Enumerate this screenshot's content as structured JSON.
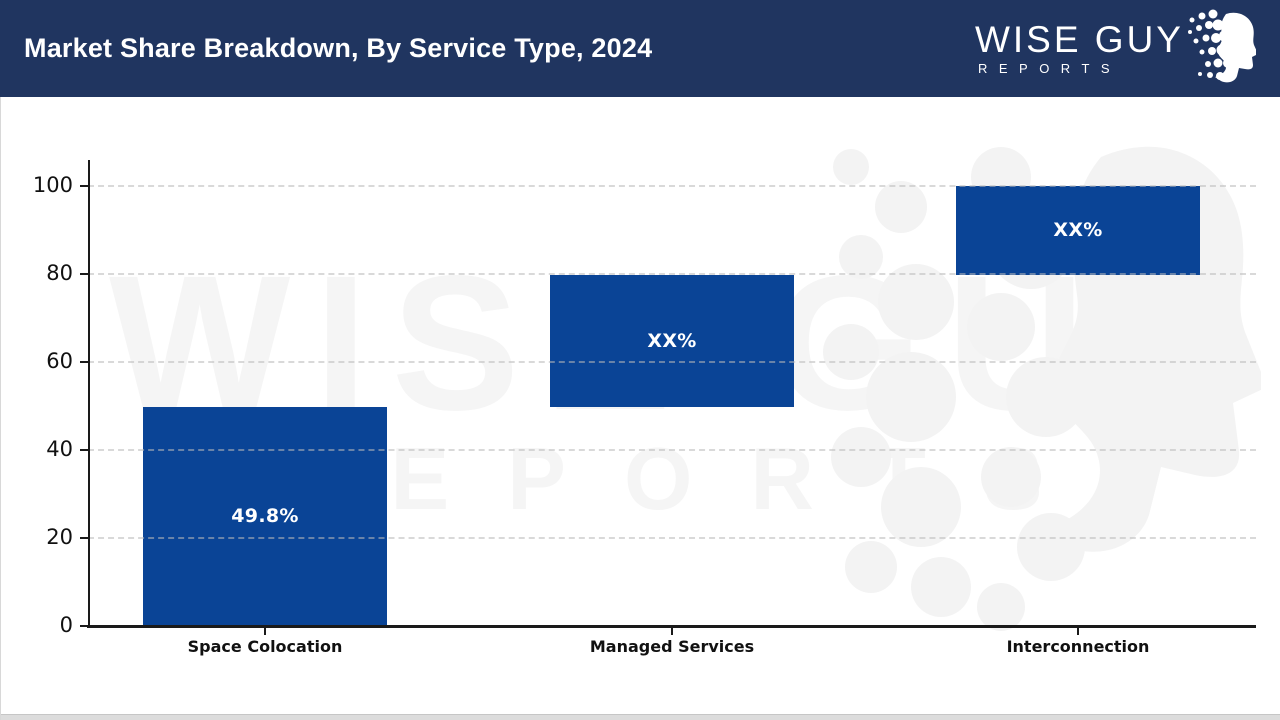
{
  "header": {
    "title": "Market Share Breakdown, By Service Type, 2024",
    "logo": {
      "line1": "WISE GUY",
      "line2": "REPORTS"
    }
  },
  "watermark": {
    "line1": "WISE GUY",
    "line2": "REPORTS"
  },
  "chart_data": {
    "type": "bar",
    "subtype": "waterfall",
    "title": "Market Share Breakdown, By Service Type, 2024",
    "categories": [
      "Space Colocation",
      "Managed Services",
      "Interconnection"
    ],
    "bars": [
      {
        "category": "Space Colocation",
        "start": 0,
        "end": 49.8,
        "value": 49.8,
        "label": "49.8%"
      },
      {
        "category": "Managed Services",
        "start": 49.8,
        "end": 79.8,
        "value": 30.0,
        "label": "XX%"
      },
      {
        "category": "Interconnection",
        "start": 79.8,
        "end": 100,
        "value": 20.2,
        "label": "XX%"
      }
    ],
    "yticks": [
      0,
      20,
      40,
      60,
      80,
      100
    ],
    "ylim": [
      0,
      105
    ],
    "xlabel": "",
    "ylabel": "",
    "grid": "dashed-horizontal",
    "legend": "none",
    "bar_color": "#0a4496",
    "bar_label_color": "#ffffff",
    "axis_color": "#1a1a1a",
    "header_color": "#203560"
  }
}
